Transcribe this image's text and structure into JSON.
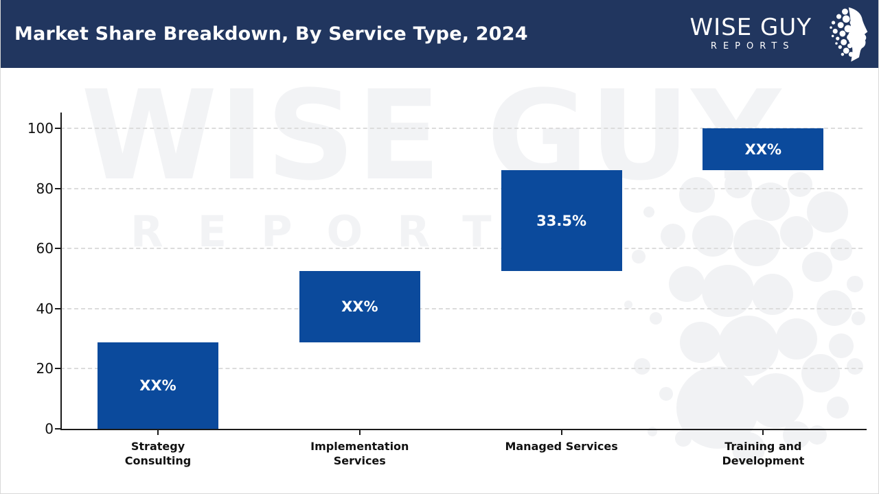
{
  "header": {
    "title": "Market Share Breakdown, By Service Type, 2024",
    "bg_color": "#21365F",
    "logo_line1": "WISE GUY",
    "logo_line2": "REPORTS"
  },
  "watermark": {
    "line1": "WISE GUY",
    "line2": "REPORTS"
  },
  "chart_data": {
    "type": "bar",
    "subtype": "waterfall",
    "title": "Market Share Breakdown, By Service Type, 2024",
    "categories": [
      "Strategy Consulting",
      "Implementation Services",
      "Managed Services",
      "Training and Development"
    ],
    "tick_label_lines": [
      [
        "Strategy",
        "Consulting"
      ],
      [
        "Implementation",
        "Services"
      ],
      [
        "Managed Services"
      ],
      [
        "Training and",
        "Development"
      ]
    ],
    "segments": [
      {
        "category": "Strategy Consulting",
        "start": 0,
        "end": 28.8,
        "label": "XX%"
      },
      {
        "category": "Implementation Services",
        "start": 28.8,
        "end": 52.5,
        "label": "XX%"
      },
      {
        "category": "Managed Services",
        "start": 52.5,
        "end": 86,
        "label": "33.5%"
      },
      {
        "category": "Training and Development",
        "start": 86,
        "end": 100,
        "label": "XX%"
      }
    ],
    "xlabel": "",
    "ylabel": "",
    "ylim": [
      0,
      100
    ],
    "yticks": [
      0,
      20,
      40,
      60,
      80,
      100
    ],
    "grid": "horizontal-dashed",
    "legend": "none",
    "bar_color": "#0B4A9C",
    "value_label_color": "#FFFFFF",
    "axis_color": "#1A1A1A",
    "gridline_color": "#DCDCDC"
  }
}
